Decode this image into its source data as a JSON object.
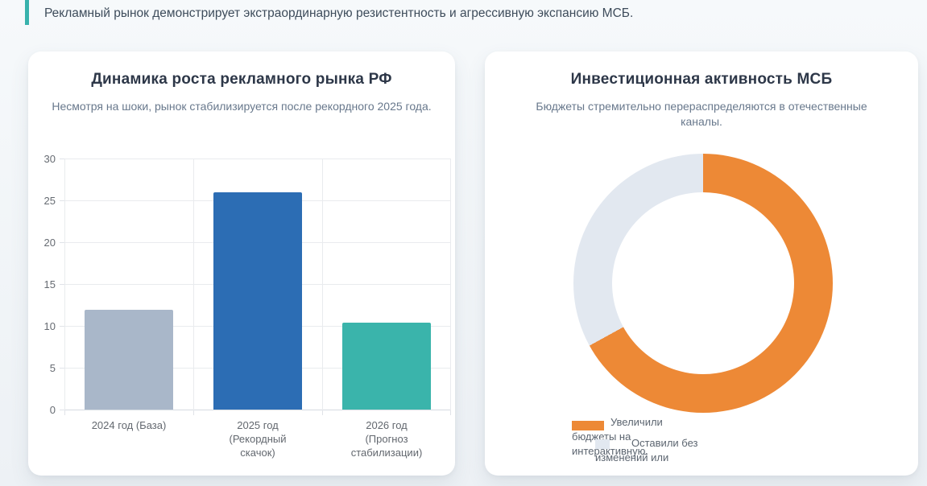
{
  "banner": {
    "text": "Рекламный рынок демонстрирует экстраординарную резистентность и агрессивную экспансию МСБ.",
    "accent_color": "#38B2AC"
  },
  "bar_card": {
    "title": "Динамика роста рекламного рынка РФ",
    "subtitle": "Несмотря на шоки, рынок стабилизируется после рекордного 2025 года."
  },
  "donut_card": {
    "title": "Инвестиционная активность МСБ",
    "subtitle": "Бюджеты стремительно перераспределяются в отечественные каналы.",
    "legend": [
      {
        "label_lines": [
          "Увеличили",
          "бюджеты на",
          "интерактивную."
        ],
        "color": "#ED8936"
      },
      {
        "label_lines": [
          "Оставили без",
          "изменений или"
        ],
        "color": "#E2E8F0"
      }
    ]
  },
  "chart_data": [
    {
      "type": "bar",
      "title": "Динамика роста рекламного рынка РФ",
      "categories": [
        "2024 год (База)",
        "2025 год (Рекордный скачок)",
        "2026 год (Прогноз стабилизации)"
      ],
      "category_lines": [
        [
          "2024 год (База)"
        ],
        [
          "2025 год",
          "(Рекордный",
          "скачок)"
        ],
        [
          "2026 год",
          "(Прогноз",
          "стабилизации)"
        ]
      ],
      "values": [
        11.9,
        26,
        10.4
      ],
      "bar_colors": [
        "#A9B7C9",
        "#2C6DB4",
        "#3AB4AB"
      ],
      "xlabel": "",
      "ylabel": "",
      "ylim": [
        0,
        30
      ],
      "yticks": [
        0,
        5,
        10,
        15,
        20,
        25,
        30
      ],
      "grid": true,
      "legend_position": "none"
    },
    {
      "type": "pie",
      "donut": true,
      "cutout_pct": 70,
      "title": "Инвестиционная активность МСБ",
      "labels": [
        "Увеличили бюджеты на интерактивную.",
        "Оставили без изменений или"
      ],
      "values": [
        67,
        33
      ],
      "colors": [
        "#ED8936",
        "#E2E8F0"
      ],
      "start_angle_deg": 0,
      "direction": "clockwise",
      "legend_position": "bottom"
    }
  ]
}
